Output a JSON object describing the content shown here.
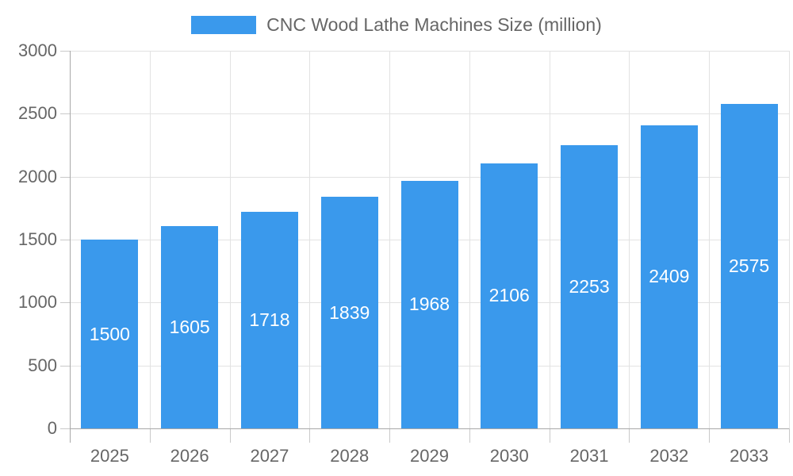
{
  "legend": {
    "label": "CNC Wood Lathe Machines Size (million)"
  },
  "chart_data": {
    "type": "bar",
    "title": "CNC Wood Lathe Machines Size (million)",
    "categories": [
      "2025",
      "2026",
      "2027",
      "2028",
      "2029",
      "2030",
      "2031",
      "2032",
      "2033"
    ],
    "values": [
      1500,
      1605,
      1718,
      1839,
      1968,
      2106,
      2253,
      2409,
      2575
    ],
    "xlabel": "",
    "ylabel": "",
    "ylim": [
      0,
      3000
    ],
    "ytick_step": 500,
    "yticks": [
      0,
      500,
      1000,
      1500,
      2000,
      2500,
      3000
    ],
    "grid": true,
    "legend_position": "top",
    "value_labels": "inside-center",
    "colors": {
      "bar": "#3a99ec",
      "axis": "#a8a8a8",
      "tick": "#c9c9c9",
      "gridline": "#e2e2e2",
      "text": "#666666",
      "value_label": "#ffffff",
      "background": "#ffffff"
    }
  }
}
